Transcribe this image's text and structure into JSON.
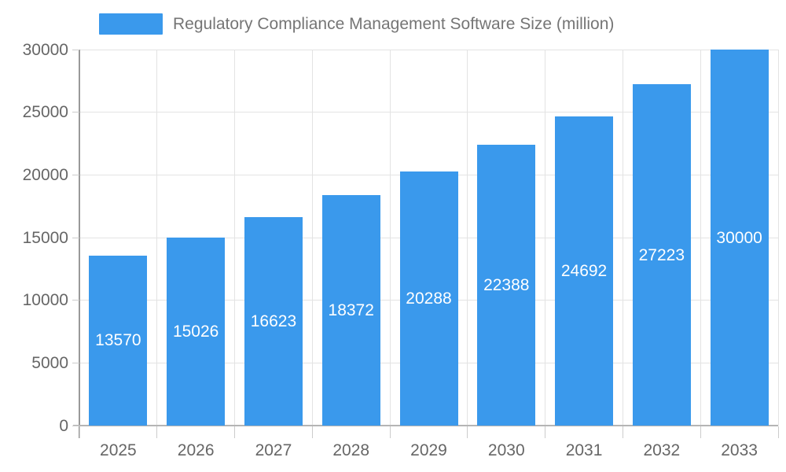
{
  "chart_data": {
    "type": "bar",
    "title": "Regulatory Compliance Management Software Size (million)",
    "categories": [
      "2025",
      "2026",
      "2027",
      "2028",
      "2029",
      "2030",
      "2031",
      "2032",
      "2033"
    ],
    "values": [
      13570,
      15026,
      16623,
      18372,
      20288,
      22388,
      24692,
      27223,
      30000
    ],
    "value_labels": [
      "13570",
      "15026",
      "16623",
      "18372",
      "20288",
      "22388",
      "24692",
      "27223",
      "30000"
    ],
    "xlabel": "",
    "ylabel": "",
    "ylim": [
      0,
      30000
    ],
    "yticks": [
      0,
      5000,
      10000,
      15000,
      20000,
      25000,
      30000
    ],
    "ytick_labels": [
      "0",
      "5000",
      "10000",
      "15000",
      "20000",
      "25000",
      "30000"
    ],
    "grid": true,
    "legend_position": "top",
    "legend_entries": [
      "Regulatory Compliance Management Software Size (million)"
    ],
    "colors": {
      "bar_fill": "#3a99ec",
      "value_label_text": "#ffffff",
      "axis_tick_text": "#666666",
      "legend_text": "#757575",
      "gridline": "#e3e3e3",
      "y_axis_line": "#999999",
      "x_axis_line": "#b5b5b5",
      "tick_mark": "#cccccc",
      "background": "#ffffff"
    }
  }
}
